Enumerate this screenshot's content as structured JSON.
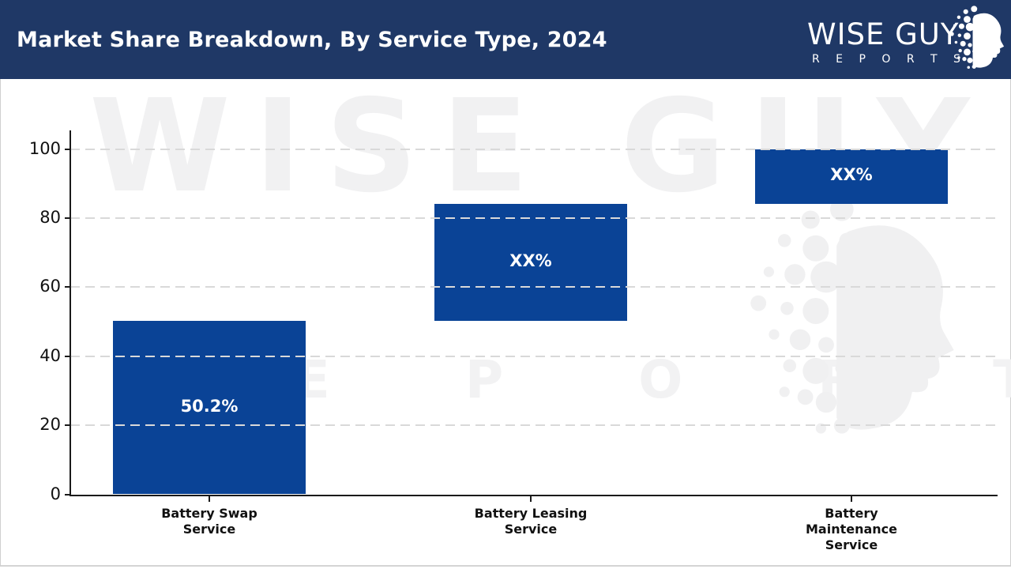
{
  "header": {
    "title": "Market Share Breakdown, By Service Type, 2024",
    "logo": {
      "primary": "WISE GUY",
      "secondary": "R E P O R T S"
    }
  },
  "watermark": {
    "primary": "WISE GUY",
    "secondary": "R E P O R T S"
  },
  "chart_data": {
    "type": "bar",
    "subtype": "floating-segment-waterfall",
    "title": "Market Share Breakdown, By Service Type, 2024",
    "categories": [
      [
        "Battery Swap",
        "Service"
      ],
      [
        "Battery Leasing",
        "Service"
      ],
      [
        "Battery",
        "Maintenance",
        "Service"
      ]
    ],
    "series": [
      {
        "name": "Market share (%)",
        "segments": [
          {
            "category": "Battery Swap Service",
            "start": 0,
            "end": 50.2,
            "label": "50.2%"
          },
          {
            "category": "Battery Leasing Service",
            "start": 50.2,
            "end": 84,
            "label": "XX%"
          },
          {
            "category": "Battery Maintenance Service",
            "start": 84,
            "end": 100,
            "label": "XX%"
          }
        ]
      }
    ],
    "xlabel": "",
    "ylabel": "",
    "ylim": [
      0,
      100
    ],
    "yticks": [
      0,
      20,
      40,
      60,
      80,
      100
    ],
    "grid": "horizontal-dashed",
    "legend": "none",
    "colors": {
      "bar": "#0a4396",
      "bar_label": "#ffffff",
      "grid": "#d9d9d9",
      "axis": "#1a1a1a",
      "header_bg": "#1f3866",
      "header_text": "#ffffff",
      "watermark": "#f1f1f2"
    }
  }
}
